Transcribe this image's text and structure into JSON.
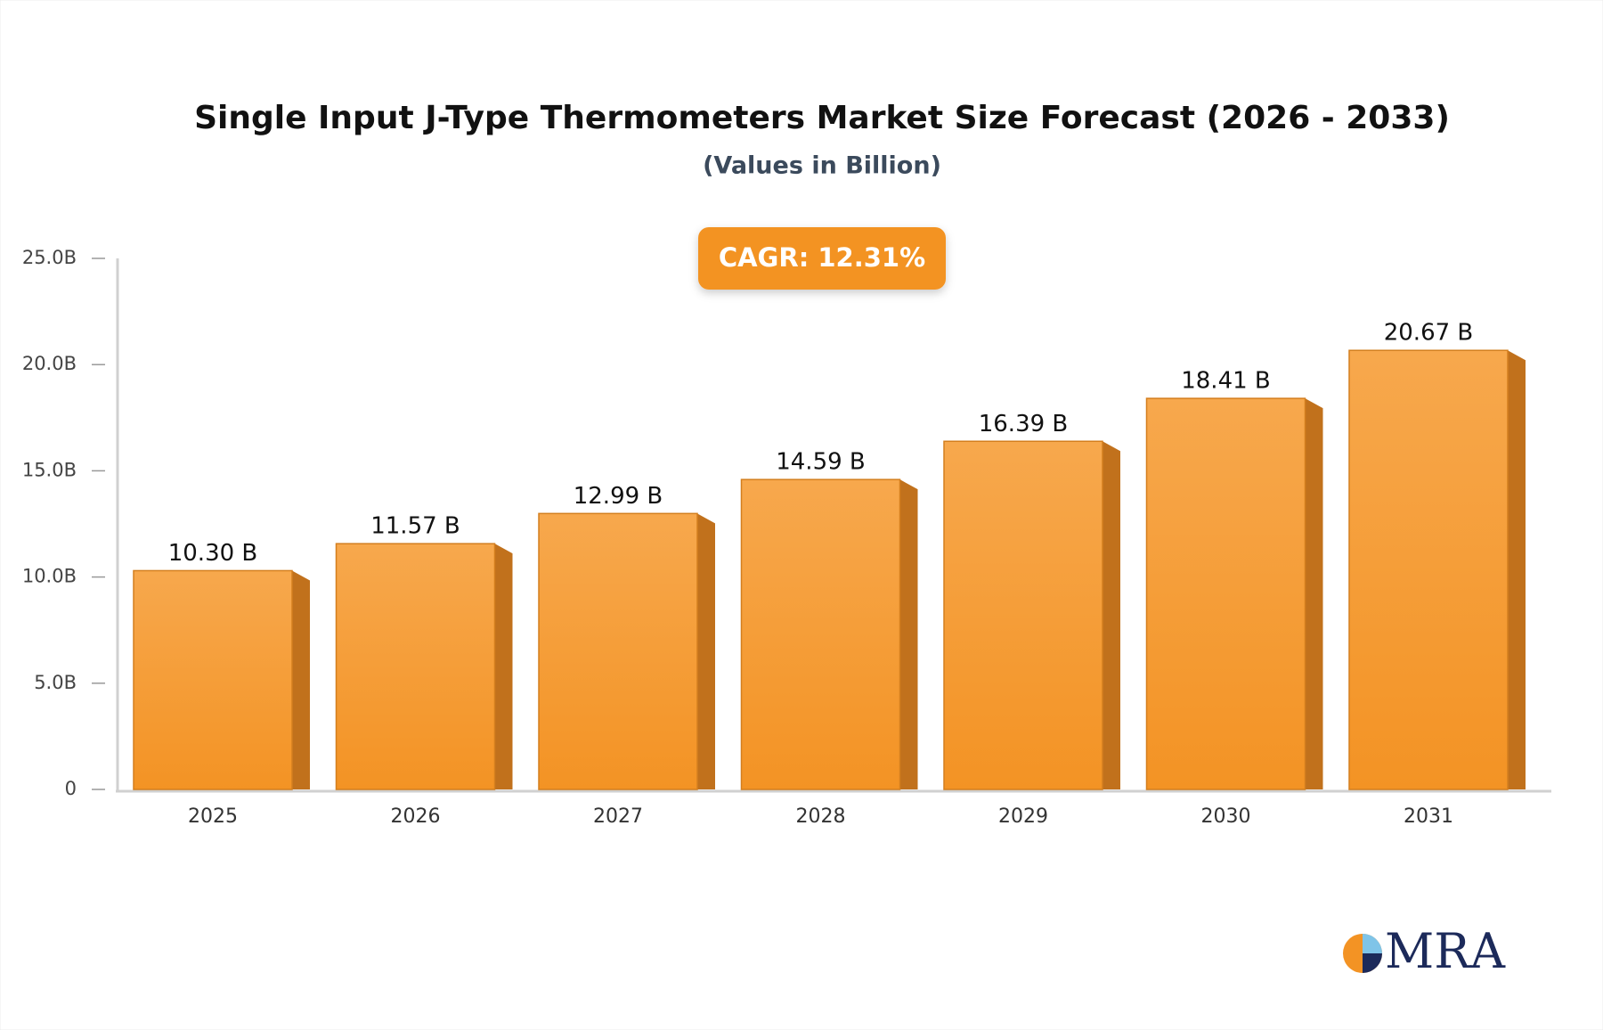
{
  "chart_data": {
    "type": "bar",
    "title": "Single Input J-Type Thermometers Market Size Forecast (2026 - 2033)",
    "subtitle": "(Values in Billion)",
    "annotation": "CAGR: 12.31%",
    "logo_text": "MRA",
    "categories": [
      "2025",
      "2026",
      "2027",
      "2028",
      "2029",
      "2030",
      "2031"
    ],
    "values": [
      10.3,
      11.57,
      12.99,
      14.59,
      16.39,
      18.41,
      20.67
    ],
    "value_labels": [
      "10.30 B",
      "11.57 B",
      "12.99 B",
      "14.59 B",
      "16.39 B",
      "18.41 B",
      "20.67 B"
    ],
    "color": "#f59a2e",
    "ylim": [
      0,
      25
    ],
    "yticks": [
      0,
      {
        "value": 5,
        "label": "5.0B"
      },
      {
        "value": 10,
        "label": "10.0B"
      },
      {
        "value": 15,
        "label": "15.0B"
      },
      {
        "value": 20,
        "label": "20.0B"
      },
      {
        "value": 25,
        "label": "25.0B"
      }
    ],
    "grid": false
  }
}
